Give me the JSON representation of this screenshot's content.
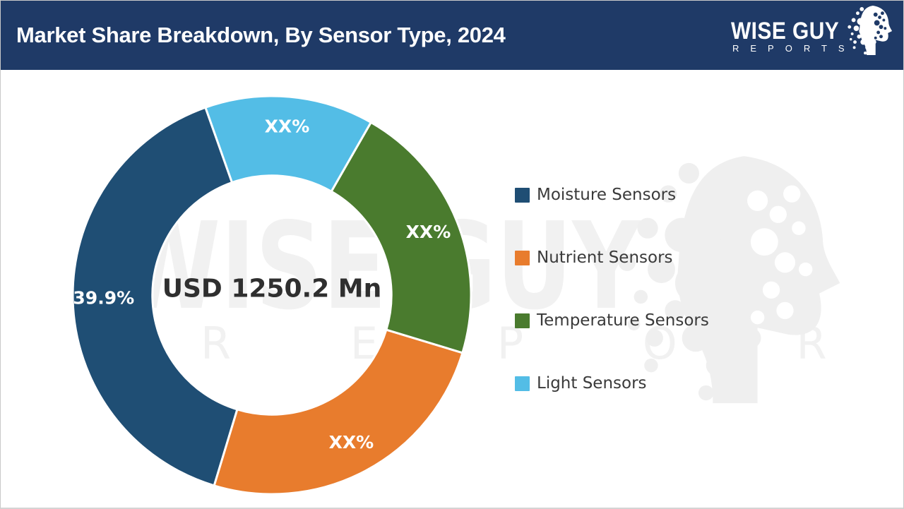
{
  "header": {
    "title": "Market Share Breakdown, By Sensor Type, 2024",
    "logo": {
      "name": "WISE GUY",
      "subname": "REPORTS"
    }
  },
  "watermark": {
    "line1": "WISE GUY",
    "line2": "REPORTS"
  },
  "colors": {
    "header_bg": "#1f3a67",
    "center_text": "#2f2f2f",
    "legend_text": "#3a3a3a",
    "watermark": "#f1f1f1",
    "slice_label_text": "#ffffff"
  },
  "chart_data": {
    "type": "pie",
    "variant": "donut",
    "title": "Market Share Breakdown, By Sensor Type, 2024",
    "center_label": "USD 1250.2 Mn",
    "start_angle_deg": 109.5,
    "direction": "counterclockwise",
    "inner_radius_ratio": 0.6,
    "label_radius_ratio": 0.845,
    "legend_position": "right",
    "segments": [
      {
        "label": "Moisture Sensors",
        "value_pct": 39.9,
        "display_label": "39.9%",
        "color": "#1f4e74"
      },
      {
        "label": "Nutrient Sensors",
        "value_pct": 25.0,
        "display_label": "XX%",
        "color": "#e87c2d"
      },
      {
        "label": "Temperature Sensors",
        "value_pct": 21.4,
        "display_label": "XX%",
        "color": "#4a7b2e"
      },
      {
        "label": "Light Sensors",
        "value_pct": 13.7,
        "display_label": "XX%",
        "color": "#53bde6"
      }
    ]
  }
}
